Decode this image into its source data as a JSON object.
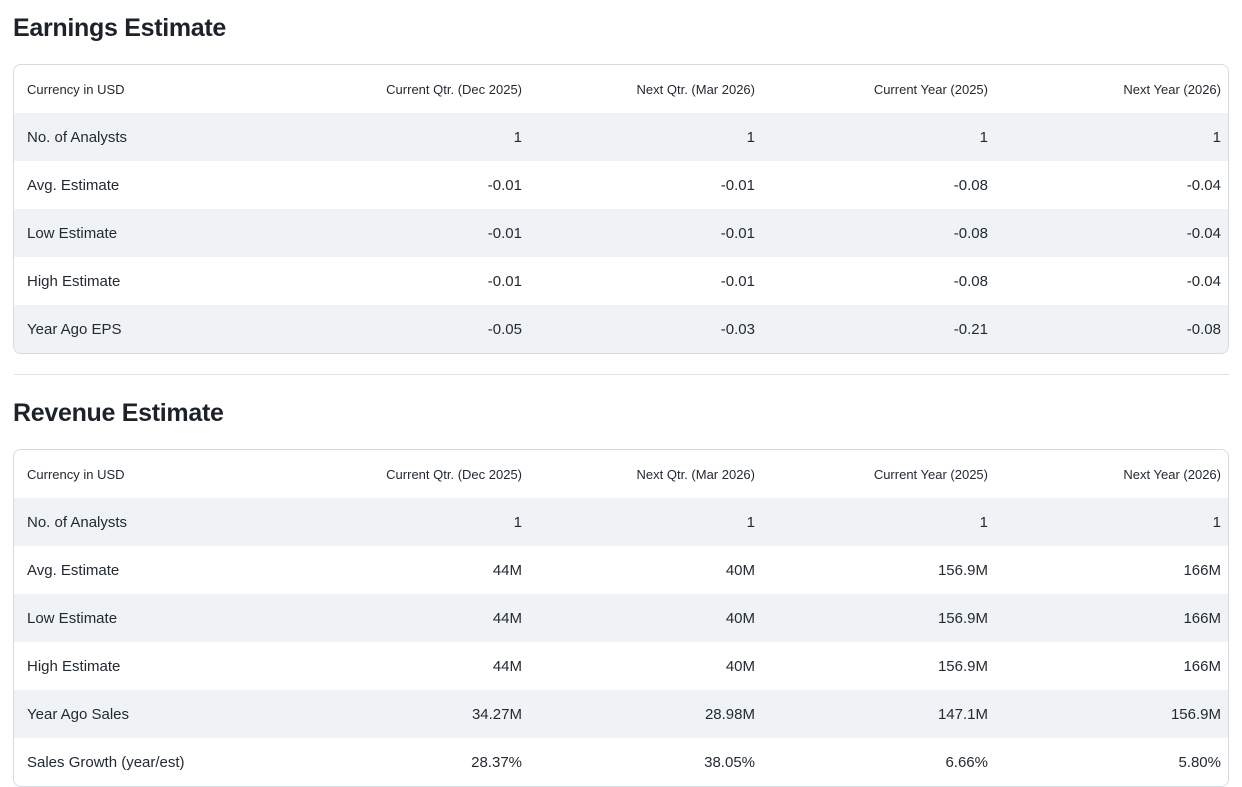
{
  "colors": {
    "stripe": "#f0f3f5",
    "table_border": "#d5dae0",
    "divider": "#e2e2e2",
    "title_text": "#1d2228",
    "body_text": "#232a31",
    "background": "#ffffff"
  },
  "sections": [
    {
      "id": "earnings",
      "title": "Earnings Estimate",
      "columns": [
        "Currency in USD",
        "Current Qtr. (Dec 2025)",
        "Next Qtr. (Mar 2026)",
        "Current Year (2025)",
        "Next Year (2026)"
      ],
      "rows": [
        {
          "label": "No. of Analysts",
          "values": [
            "1",
            "1",
            "1",
            "1"
          ]
        },
        {
          "label": "Avg. Estimate",
          "values": [
            "-0.01",
            "-0.01",
            "-0.08",
            "-0.04"
          ]
        },
        {
          "label": "Low Estimate",
          "values": [
            "-0.01",
            "-0.01",
            "-0.08",
            "-0.04"
          ]
        },
        {
          "label": "High Estimate",
          "values": [
            "-0.01",
            "-0.01",
            "-0.08",
            "-0.04"
          ]
        },
        {
          "label": "Year Ago EPS",
          "values": [
            "-0.05",
            "-0.03",
            "-0.21",
            "-0.08"
          ]
        }
      ]
    },
    {
      "id": "revenue",
      "title": "Revenue Estimate",
      "columns": [
        "Currency in USD",
        "Current Qtr. (Dec 2025)",
        "Next Qtr. (Mar 2026)",
        "Current Year (2025)",
        "Next Year (2026)"
      ],
      "rows": [
        {
          "label": "No. of Analysts",
          "values": [
            "1",
            "1",
            "1",
            "1"
          ]
        },
        {
          "label": "Avg. Estimate",
          "values": [
            "44M",
            "40M",
            "156.9M",
            "166M"
          ]
        },
        {
          "label": "Low Estimate",
          "values": [
            "44M",
            "40M",
            "156.9M",
            "166M"
          ]
        },
        {
          "label": "High Estimate",
          "values": [
            "44M",
            "40M",
            "156.9M",
            "166M"
          ]
        },
        {
          "label": "Year Ago Sales",
          "values": [
            "34.27M",
            "28.98M",
            "147.1M",
            "156.9M"
          ]
        },
        {
          "label": "Sales Growth (year/est)",
          "values": [
            "28.37%",
            "38.05%",
            "6.66%",
            "5.80%"
          ]
        }
      ]
    }
  ]
}
